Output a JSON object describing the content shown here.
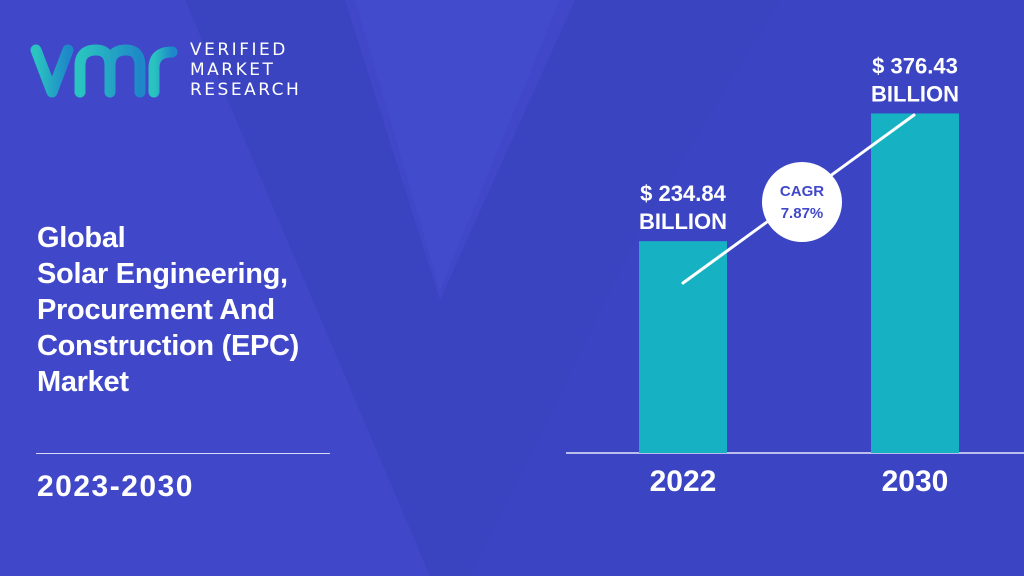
{
  "brand": {
    "lines": [
      "VERIFIED",
      "MARKET",
      "RESEARCH"
    ],
    "colors": {
      "mark_start": "#2ac4c0",
      "mark_end": "#1e88c8"
    }
  },
  "title_lines": [
    "Global",
    "Solar Engineering,",
    "Procurement And",
    "Construction (EPC)",
    "Market"
  ],
  "period": "2023-2030",
  "colors": {
    "background": "#4048c9",
    "bar": "#16b2c4",
    "text": "#ffffff",
    "cagr_text": "#4048c9"
  },
  "chart_data": {
    "type": "bar",
    "categories": [
      "2022",
      "2030"
    ],
    "values": [
      234.84,
      376.43
    ],
    "value_labels": [
      [
        "$ 234.84",
        "BILLION"
      ],
      [
        "$ 376.43",
        "BILLION"
      ]
    ],
    "annotation": {
      "label": "CAGR",
      "value": "7.87%"
    },
    "title": "",
    "xlabel": "",
    "ylabel": "",
    "grid": false,
    "legend": "none"
  }
}
